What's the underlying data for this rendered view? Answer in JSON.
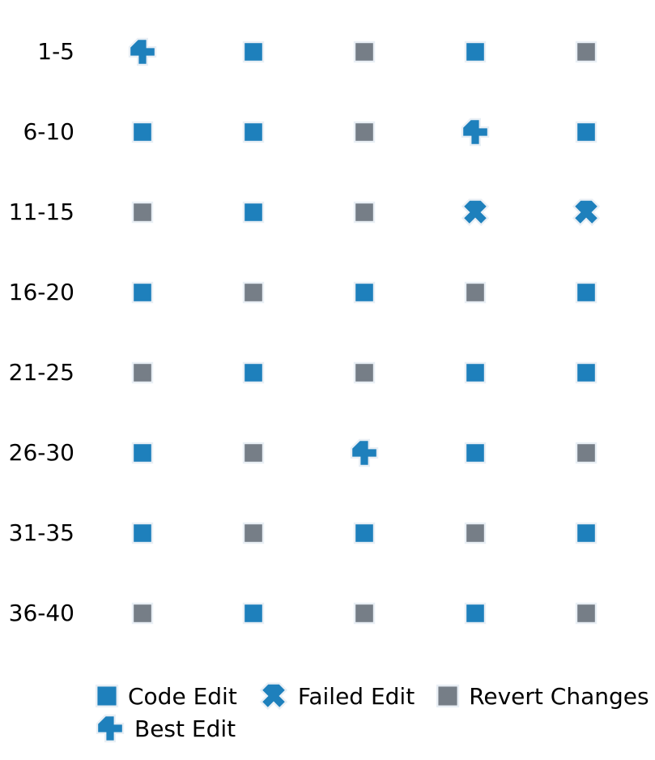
{
  "chart_data": {
    "type": "scatter",
    "description": "Categorical marker grid: edit outcome per edit index, 8 rows of 5 edits each",
    "rows": [
      "1-5",
      "6-10",
      "11-15",
      "16-20",
      "21-25",
      "26-30",
      "31-35",
      "36-40"
    ],
    "columns_per_row": 5,
    "grid": [
      [
        "best",
        "code",
        "revert",
        "code",
        "revert"
      ],
      [
        "code",
        "code",
        "revert",
        "best",
        "code"
      ],
      [
        "revert",
        "code",
        "revert",
        "failed",
        "failed"
      ],
      [
        "code",
        "revert",
        "code",
        "revert",
        "code"
      ],
      [
        "revert",
        "code",
        "revert",
        "code",
        "code"
      ],
      [
        "code",
        "revert",
        "best",
        "code",
        "revert"
      ],
      [
        "code",
        "revert",
        "code",
        "revert",
        "code"
      ],
      [
        "revert",
        "code",
        "revert",
        "code",
        "revert"
      ]
    ],
    "legend": [
      {
        "id": "code",
        "label": "Code Edit"
      },
      {
        "id": "failed",
        "label": "Failed Edit"
      },
      {
        "id": "revert",
        "label": "Revert Changes"
      },
      {
        "id": "best",
        "label": "Best Edit"
      }
    ],
    "legend_position": "bottom",
    "legend_rows": [
      [
        "code",
        "failed",
        "revert"
      ],
      [
        "best"
      ]
    ],
    "markers": {
      "code": {
        "shape": "square",
        "color": "#1e80bc"
      },
      "failed": {
        "shape": "x",
        "color": "#1e80bc"
      },
      "revert": {
        "shape": "square",
        "color": "#767e87"
      },
      "best": {
        "shape": "plus",
        "color": "#1e80bc"
      }
    },
    "colors": {
      "blue": "#1e80bc",
      "gray": "#767e87",
      "marker_edge": "#e9eff5",
      "text": "#000000",
      "background": "#ffffff"
    },
    "grid_lines": false,
    "axes_visible": false
  }
}
